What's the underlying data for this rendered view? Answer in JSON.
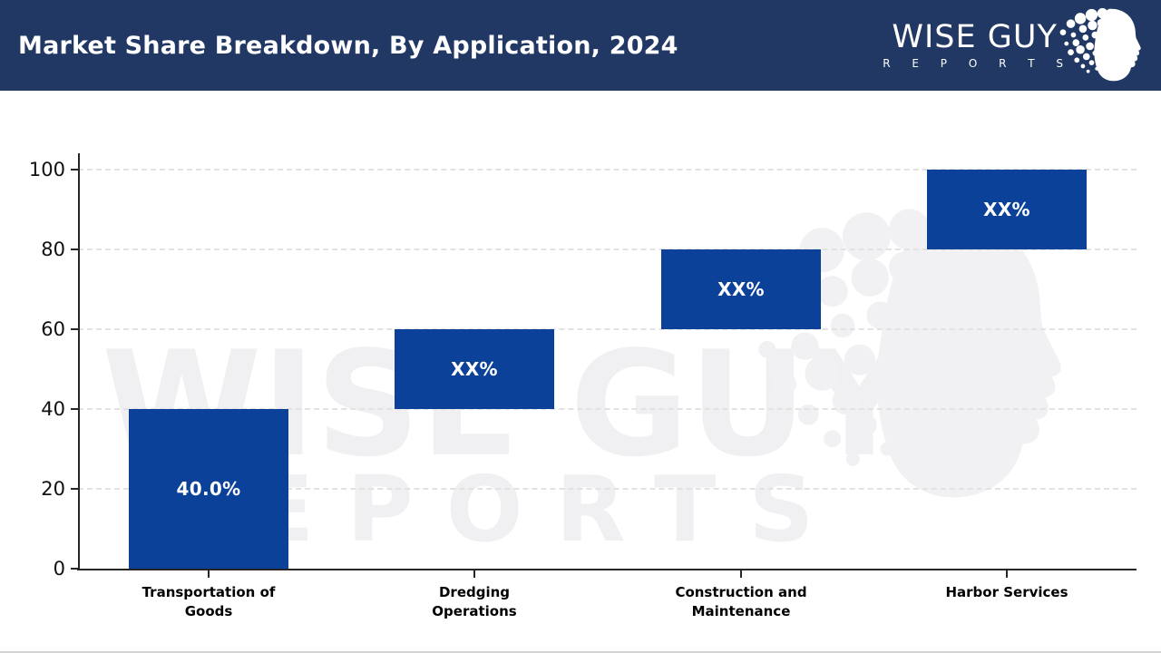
{
  "header": {
    "title": "Market Share Breakdown, By Application, 2024",
    "bg_color": "#213864",
    "logo": {
      "wordmark": "WISE GUY",
      "subtext": "R E P O R T S"
    }
  },
  "watermark": {
    "line1": "WISE GUY",
    "line2": "REPORTS"
  },
  "chart_data": {
    "type": "bar",
    "subtype": "floating-segment waterfall of market share percentages",
    "title": "Market Share Breakdown, By Application, 2024",
    "categories": [
      "Transportation of Goods",
      "Dredging Operations",
      "Construction and Maintenance",
      "Harbor Services"
    ],
    "category_lines": [
      [
        "Transportation of",
        "Goods"
      ],
      [
        "Dredging",
        "Operations"
      ],
      [
        "Construction and",
        "Maintenance"
      ],
      [
        "Harbor Services"
      ]
    ],
    "segments": [
      {
        "category": "Transportation of Goods",
        "start": 0,
        "end": 40,
        "label": "40.0%"
      },
      {
        "category": "Dredging Operations",
        "start": 40,
        "end": 60,
        "label": "XX%"
      },
      {
        "category": "Construction and Maintenance",
        "start": 60,
        "end": 80,
        "label": "XX%"
      },
      {
        "category": "Harbor Services",
        "start": 80,
        "end": 100,
        "label": "XX%"
      }
    ],
    "yticks": [
      0,
      20,
      40,
      60,
      80,
      100
    ],
    "ylim": [
      0,
      104
    ],
    "xlabel": "",
    "ylabel": "",
    "grid": "horizontal dashed",
    "legend": "none",
    "bar_color": "#0b4199",
    "bar_label_color": "#ffffff",
    "axis_color": "#262626",
    "tick_label_color": "#111111"
  }
}
